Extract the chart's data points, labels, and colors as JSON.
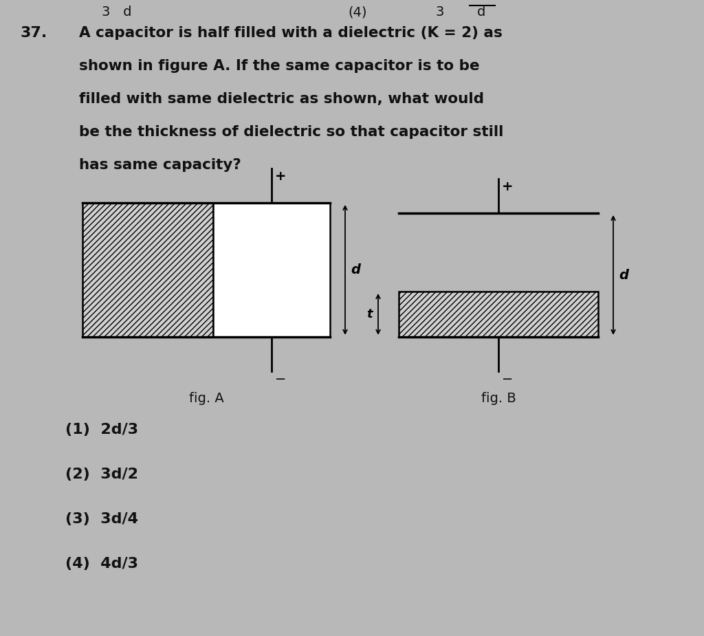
{
  "background_color": "#b8b8b8",
  "question_number": "37.",
  "question_text_line1": "A capacitor is half filled with a dielectric (K = 2) as",
  "question_text_line2": "shown in figure A. If the same capacitor is to be",
  "question_text_line3": "filled with same dielectric as shown, what would",
  "question_text_line4": "be the thickness of dielectric so that capacitor still",
  "question_text_line5": "has same capacity?",
  "fig_a_label": "fig. A",
  "fig_b_label": "fig. B",
  "options": [
    "(1)  2d/3",
    "(2)  3d/2",
    "(3)  3d/4",
    "(4)  4d/3"
  ],
  "text_color": "#111111",
  "plate_lw": 2.5,
  "hatch_density": "////",
  "dielectric_face": "#d0d0d0"
}
